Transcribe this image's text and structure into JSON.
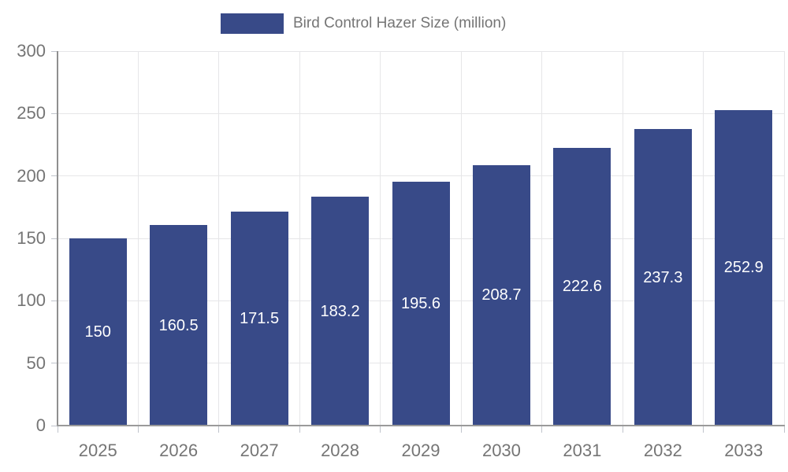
{
  "chart_data": {
    "type": "bar",
    "title": "Bird Control Hazer Size (million)",
    "categories": [
      "2025",
      "2026",
      "2027",
      "2028",
      "2029",
      "2030",
      "2031",
      "2032",
      "2033"
    ],
    "values": [
      150,
      160.5,
      171.5,
      183.2,
      195.6,
      208.7,
      222.6,
      237.3,
      252.9
    ],
    "value_labels": [
      "150",
      "160.5",
      "171.5",
      "183.2",
      "195.6",
      "208.7",
      "222.6",
      "237.3",
      "252.9"
    ],
    "xlabel": "",
    "ylabel": "",
    "ylim": [
      0,
      300
    ],
    "ytick_interval": 50,
    "yticks": [
      0,
      50,
      100,
      150,
      200,
      250,
      300
    ],
    "grid": true,
    "legend_position": "top-center",
    "colors": {
      "bar": "#384A88",
      "grid": "#e6e6e8",
      "axis_y": "#8f8f8f",
      "axis_x": "#9a9a9a",
      "tick": "#c0c4cc",
      "axis_text": "#757575",
      "bar_label_text": "#ffffff",
      "legend_text": "#757575",
      "background": "#ffffff"
    }
  },
  "legend": {
    "label": "Bird Control Hazer Size (million)"
  }
}
